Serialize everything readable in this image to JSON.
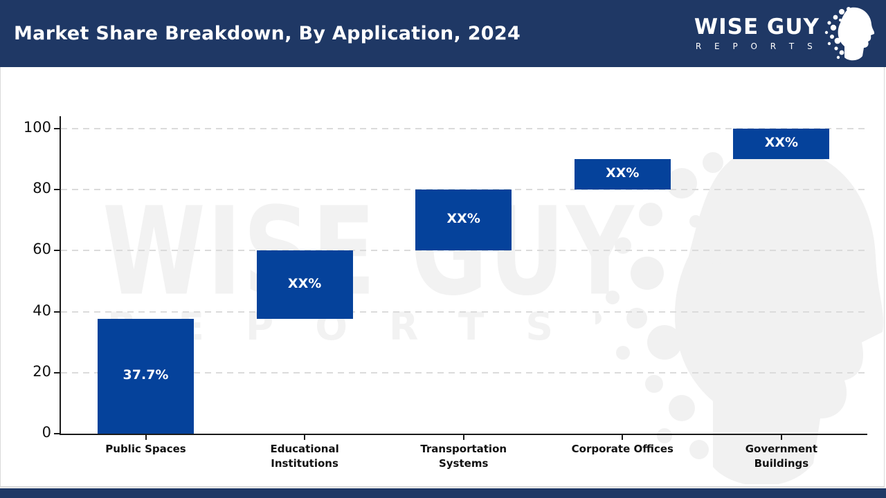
{
  "header": {
    "title": "Market Share Breakdown, By Application, 2024",
    "logo": {
      "line1": "WISE GUY",
      "line2": "R E P O R T S",
      "face_icon": "dotted-head-profile-icon"
    }
  },
  "watermark": {
    "line1": "WISE GUY",
    "line2": "REPORTS",
    "face_icon": "dotted-head-profile-watermark"
  },
  "chart_data": {
    "type": "bar",
    "subtype": "floating-waterfall",
    "title": "Market Share Breakdown, By Application, 2024",
    "categories": [
      "Public Spaces",
      "Educational Institutions",
      "Transportation Systems",
      "Corporate Offices",
      "Government Buildings"
    ],
    "segments": [
      {
        "from": 0,
        "to": 37.7,
        "label": "37.7%"
      },
      {
        "from": 37.7,
        "to": 60,
        "label": "XX%"
      },
      {
        "from": 60,
        "to": 80,
        "label": "XX%"
      },
      {
        "from": 80,
        "to": 90,
        "label": "XX%"
      },
      {
        "from": 90,
        "to": 100,
        "label": "XX%"
      }
    ],
    "yticks": [
      0,
      20,
      40,
      60,
      80,
      100
    ],
    "ylim": [
      0,
      105
    ],
    "xlabel": "",
    "ylabel": "",
    "grid": "horizontal-dashed",
    "legend": "none"
  },
  "colors": {
    "header_bg": "#1F3865",
    "footer_bg": "#1F3865",
    "bar": "#05429B",
    "bar_label": "#FFFFFF",
    "gridline": "#DBDBDB",
    "axis": "#1A1A1A",
    "watermark": "#F2F2F2",
    "card_border": "#D9D9D9"
  }
}
